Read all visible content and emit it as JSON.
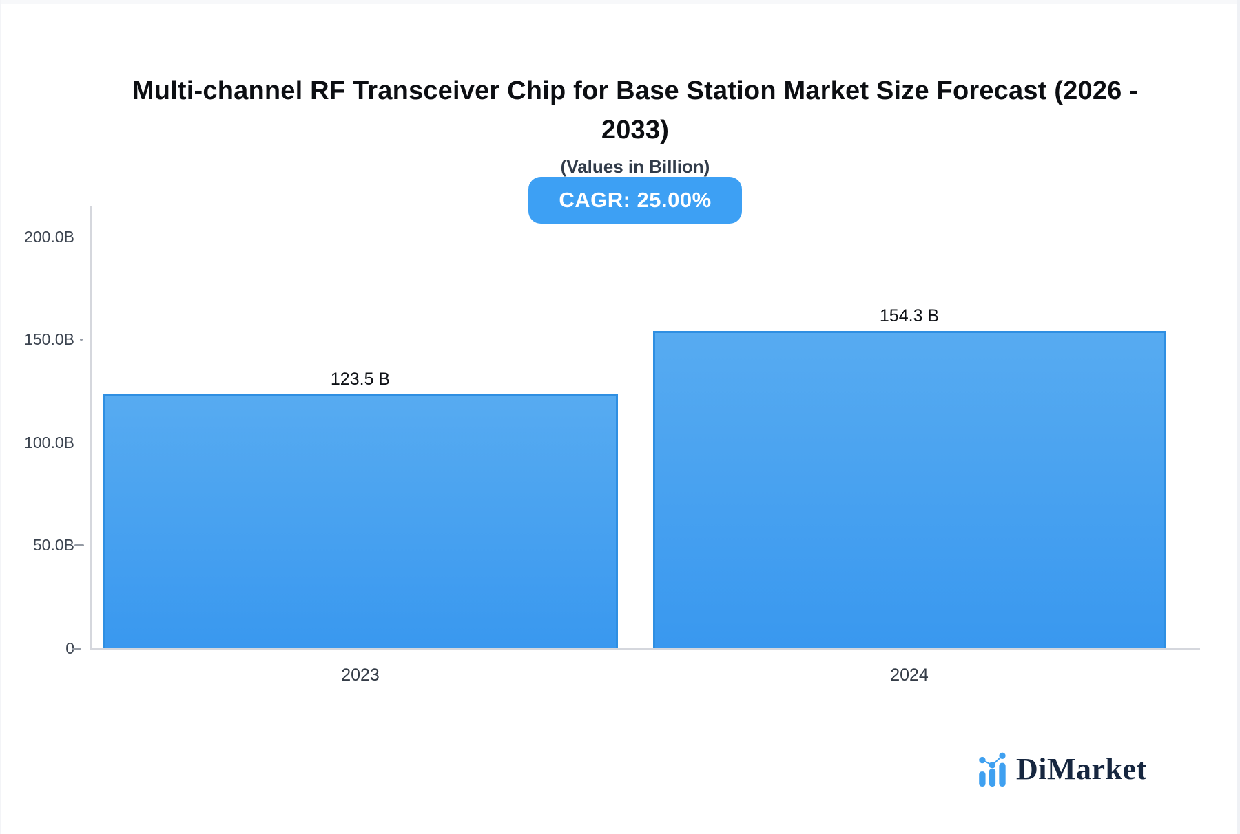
{
  "page": {
    "background": "#ffffff",
    "frame_color": "#f7f8fa"
  },
  "header": {
    "title_line1": "Multi-channel RF Transceiver Chip for Base Station Market Size Forecast (2026 -",
    "title_line2": "2033)",
    "subtitle": "(Values in Billion)",
    "cagr_badge": "CAGR: 25.00%",
    "badge_color": "#3da0f4"
  },
  "chart_data": {
    "type": "bar",
    "title": "Multi-channel RF Transceiver Chip for Base Station Market Size Forecast (2026 - 2033)",
    "subtitle": "(Values in Billion)",
    "cagr": "25.00%",
    "categories": [
      "2023",
      "2024"
    ],
    "values": [
      123.5,
      154.3
    ],
    "value_labels": [
      "123.5 B",
      "154.3 B"
    ],
    "unit": "Billion",
    "xlabel": "",
    "ylabel": "",
    "ylim": [
      0,
      200
    ],
    "ytick_labels": [
      "200.0B",
      "150.0B",
      "100.0B",
      "50.0B",
      "0"
    ],
    "ytick_values": [
      200,
      150,
      100,
      50,
      0
    ],
    "grid": false,
    "legend": false,
    "bar_color_top": "#57abf1",
    "bar_color_bottom": "#3998ef",
    "bar_border_color": "#2f8fe2",
    "axis_color": "#d5d7dd"
  },
  "footer": {
    "brand": "DiMarket",
    "brand_color": "#16263f",
    "icon_color": "#3fa0f0",
    "icon": "bar-chart-logo-icon"
  }
}
